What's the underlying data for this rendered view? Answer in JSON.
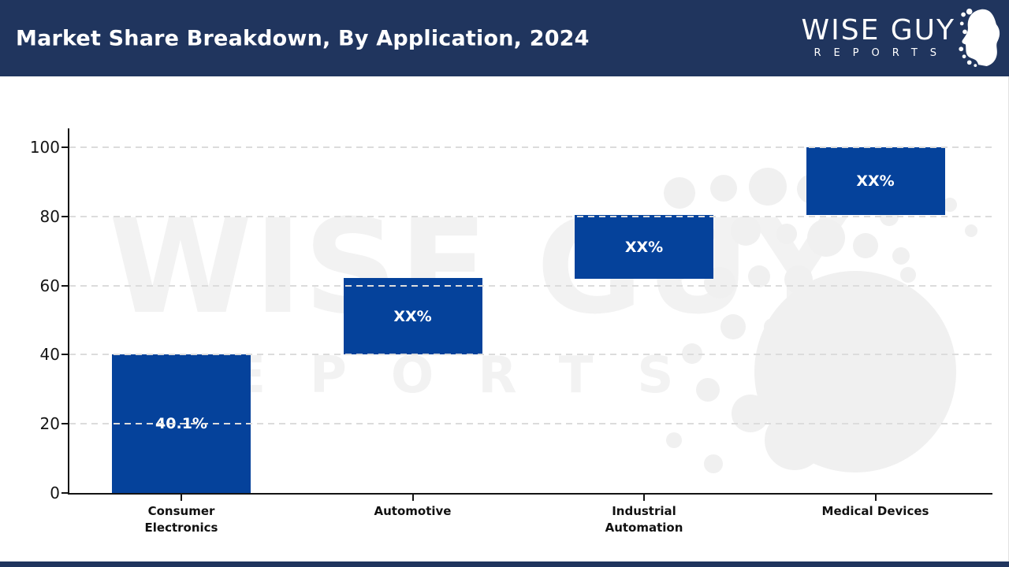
{
  "header": {
    "title": "Market Share Breakdown, By Application, 2024",
    "logo": {
      "name": "WISE GUY",
      "tagline": "REPORTS"
    }
  },
  "watermark": {
    "line1": "WISE GUY",
    "line2": "REPORTS"
  },
  "chart_data": {
    "type": "bar",
    "subtype": "floating-waterfall",
    "title": "Market Share Breakdown, By Application, 2024",
    "categories": [
      "Consumer\nElectronics",
      "Automotive",
      "Industrial\nAutomation",
      "Medical Devices"
    ],
    "segments": [
      {
        "category": "Consumer Electronics",
        "start": 0,
        "end": 40.1,
        "label": "40.1%"
      },
      {
        "category": "Automotive",
        "start": 40,
        "end": 62.1,
        "label": "XX%"
      },
      {
        "category": "Industrial Automation",
        "start": 62,
        "end": 80.3,
        "label": "XX%"
      },
      {
        "category": "Medical Devices",
        "start": 80.3,
        "end": 100,
        "label": "XX%"
      }
    ],
    "yticks": [
      0,
      20,
      40,
      60,
      80,
      100
    ],
    "ylim": [
      0,
      105
    ],
    "grid": "horizontal-dashed",
    "legend": false,
    "colors": {
      "bar": "#05429B",
      "header": "#20355e",
      "grid": "#dcdcdc",
      "axis": "#141414",
      "watermark": "#f2f2f2",
      "bar_label_text": "#ffffff"
    }
  }
}
